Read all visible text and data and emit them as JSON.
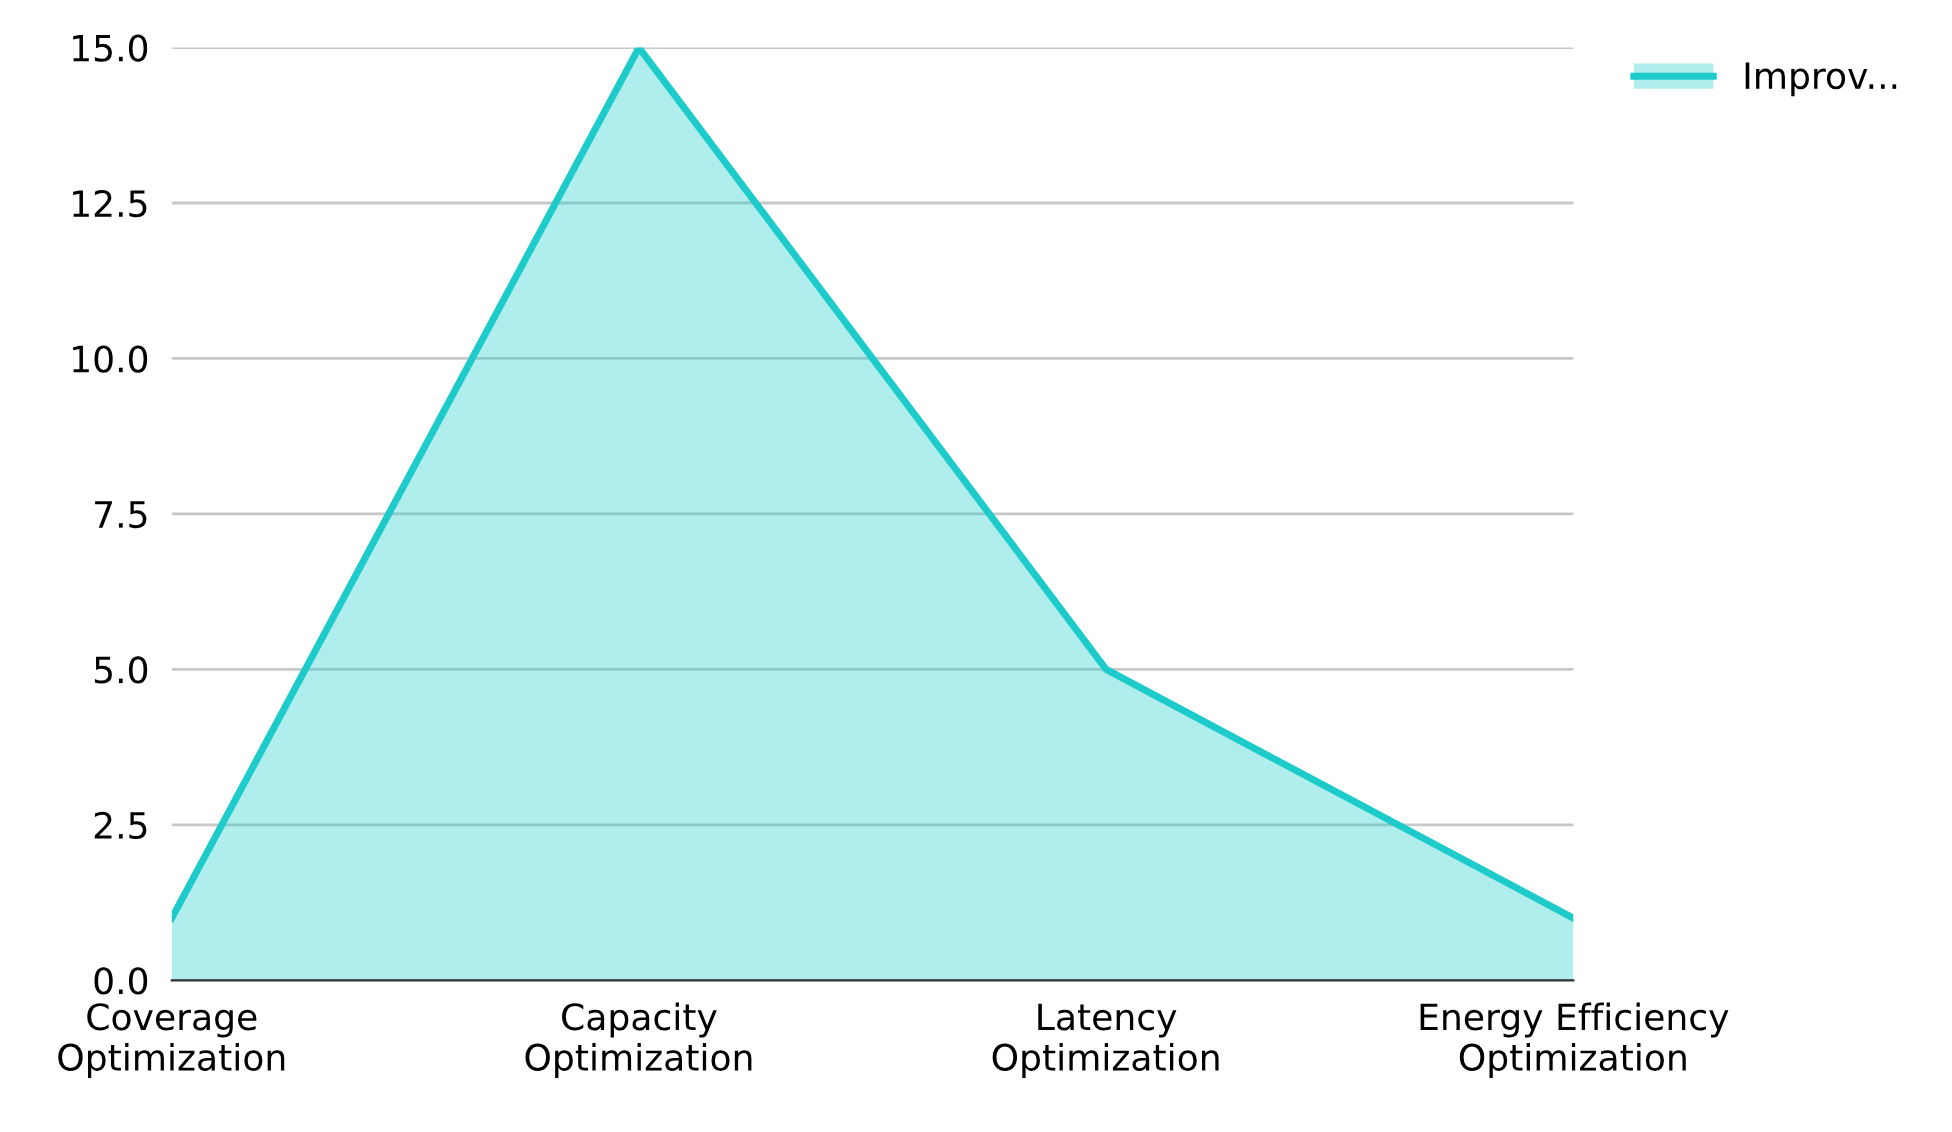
{
  "chart_data": {
    "type": "area",
    "categories": [
      "Coverage\nOptimization",
      "Capacity\nOptimization",
      "Latency\nOptimization",
      "Energy Efficiency\nOptimization"
    ],
    "series": [
      {
        "name": "Improv...",
        "color": "#1ecbcb",
        "values": [
          1,
          15,
          5,
          1
        ]
      }
    ],
    "ylim": [
      0,
      15
    ],
    "yticks": [
      {
        "value": 0,
        "label": "0.0"
      },
      {
        "value": 2.5,
        "label": "2.5"
      },
      {
        "value": 5,
        "label": "5.0"
      },
      {
        "value": 7.5,
        "label": "7.5"
      },
      {
        "value": 10,
        "label": "10.0"
      },
      {
        "value": 12.5,
        "label": "12.5"
      },
      {
        "value": 15,
        "label": "15.0"
      }
    ],
    "grid": "y",
    "legend": "top right"
  }
}
